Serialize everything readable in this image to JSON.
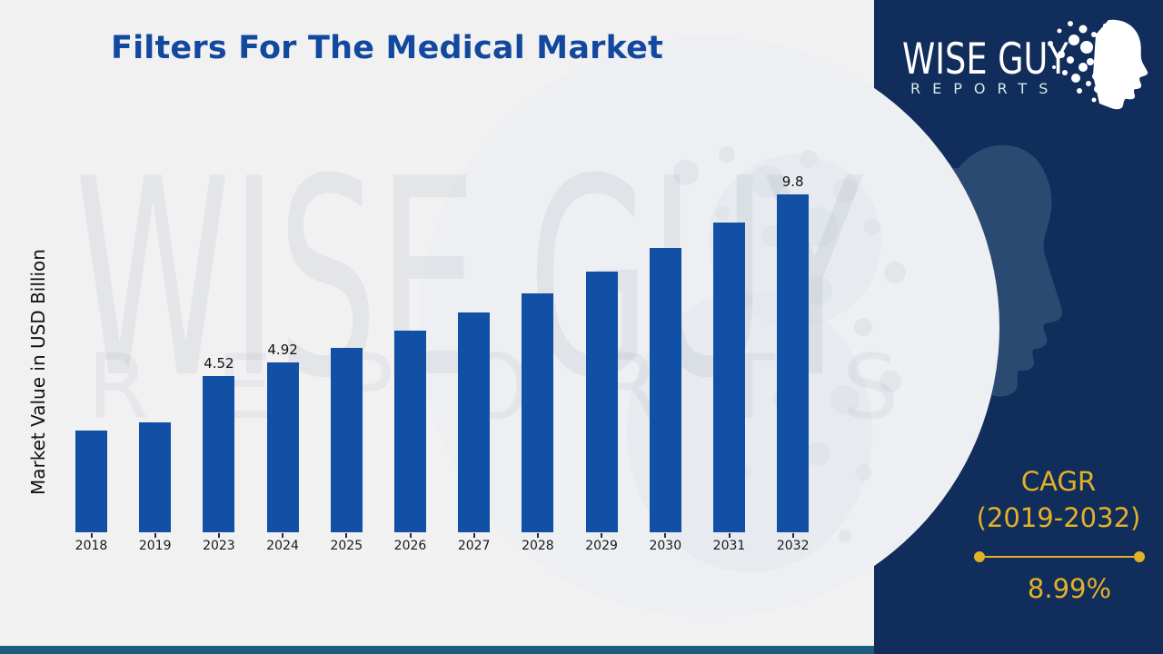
{
  "title": "Filters For The Medical Market",
  "logo": {
    "line1": "WISE GUY",
    "line2": "REPORTS"
  },
  "watermark": {
    "line1": "WISE GUY",
    "line2": "REPORTS"
  },
  "cagr": {
    "label_line1": "CAGR",
    "label_line2": "(2019-2032)",
    "value": "8.99%"
  },
  "colors": {
    "background": "#f1f1f2",
    "bar_blue": "#1150a4",
    "title_blue": "#12499e",
    "panel_navy": "#112d5b",
    "panel_face_blue": "#2b4a72",
    "gold": "#e2b126",
    "teal_strip": "#1b5d7c"
  },
  "chart_data": {
    "type": "bar",
    "title": "Filters For The Medical Market",
    "xlabel": "",
    "ylabel": "Market Value in USD Billion",
    "categories": [
      "2018",
      "2019",
      "2023",
      "2024",
      "2025",
      "2026",
      "2027",
      "2028",
      "2029",
      "2030",
      "2031",
      "2032"
    ],
    "values": [
      2.94,
      3.2,
      4.52,
      4.92,
      5.36,
      5.84,
      6.37,
      6.94,
      7.57,
      8.25,
      8.99,
      9.8
    ],
    "value_labels": [
      "",
      "",
      "4.52",
      "4.92",
      "",
      "",
      "",
      "",
      "",
      "",
      "",
      "9.8"
    ],
    "ylim": [
      0,
      10.3
    ],
    "grid": false,
    "legend": null,
    "bar_color": "#1150a4",
    "annotation": "CAGR (2019-2032) 8.99%"
  }
}
